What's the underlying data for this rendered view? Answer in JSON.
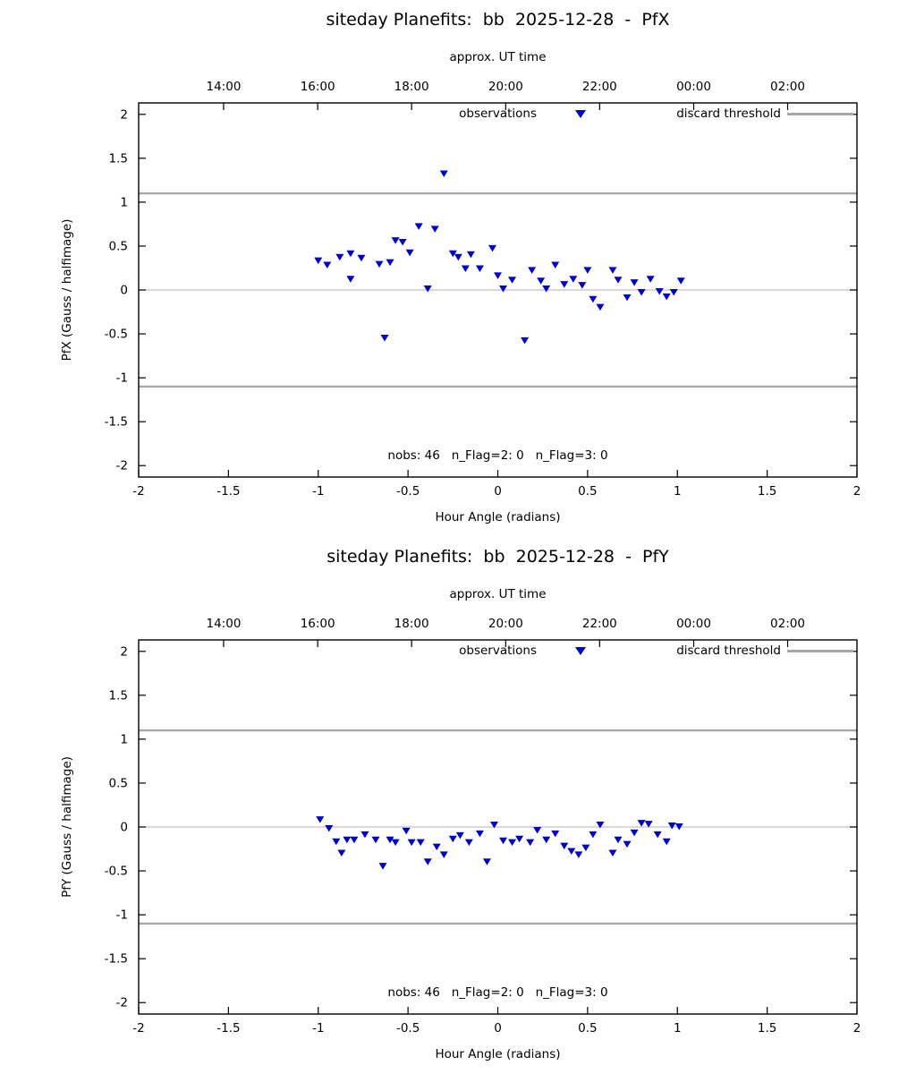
{
  "colors": {
    "marker": "#0000cc",
    "threshold": "#a8a8a8",
    "zero": "#c2c2c2",
    "box": "#000000"
  },
  "chart_data": [
    {
      "type": "scatter",
      "title": "siteday Planefits:  bb  2025-12-28  -  PfX",
      "top_axis_label": "approx. UT time",
      "xlabel": "Hour Angle (radians)",
      "ylabel": "PfX (Gauss / halfimage)",
      "annotation": "nobs: 46   n_Flag=2: 0   n_Flag=3: 0",
      "legend": {
        "observations_label": "observations",
        "threshold_label": "discard threshold"
      },
      "xlim": [
        -2,
        2
      ],
      "ylim": [
        -2.13,
        2.13
      ],
      "x_ticks": [
        -2,
        -1.5,
        -1,
        -0.5,
        0,
        0.5,
        1,
        1.5,
        2
      ],
      "x_tick_labels": [
        "-2",
        "-1.5",
        "-1",
        "-0.5",
        "0",
        "0.5",
        "1",
        "1.5",
        "2"
      ],
      "y_ticks": [
        2,
        1.5,
        1,
        0.5,
        0,
        -0.5,
        -1,
        -1.5,
        -2
      ],
      "y_tick_labels": [
        "2",
        "1.5",
        "1",
        "0.5",
        "0",
        "-0.5",
        "-1",
        "-1.5",
        "-2"
      ],
      "ut_ticks": [
        {
          "label": "14:00",
          "x": -1.527
        },
        {
          "label": "16:00",
          "x": -1.003
        },
        {
          "label": "18:00",
          "x": -0.48
        },
        {
          "label": "20:00",
          "x": 0.044
        },
        {
          "label": "22:00",
          "x": 0.567
        },
        {
          "label": "00:00",
          "x": 1.091
        },
        {
          "label": "02:00",
          "x": 1.614
        }
      ],
      "threshold_y": [
        1.1,
        -1.1
      ],
      "zero_line_y": 0,
      "points": [
        [
          -1.0,
          0.34
        ],
        [
          -0.95,
          0.29
        ],
        [
          -0.88,
          0.38
        ],
        [
          -0.82,
          0.42
        ],
        [
          -0.82,
          0.13
        ],
        [
          -0.76,
          0.37
        ],
        [
          -0.66,
          0.3
        ],
        [
          -0.63,
          -0.54
        ],
        [
          -0.6,
          0.32
        ],
        [
          -0.57,
          0.57
        ],
        [
          -0.53,
          0.55
        ],
        [
          -0.49,
          0.43
        ],
        [
          -0.44,
          0.73
        ],
        [
          -0.39,
          0.02
        ],
        [
          -0.35,
          0.7
        ],
        [
          -0.3,
          1.33
        ],
        [
          -0.25,
          0.42
        ],
        [
          -0.22,
          0.38
        ],
        [
          -0.18,
          0.25
        ],
        [
          -0.15,
          0.41
        ],
        [
          -0.1,
          0.25
        ],
        [
          -0.03,
          0.48
        ],
        [
          0.0,
          0.17
        ],
        [
          0.03,
          0.02
        ],
        [
          0.08,
          0.12
        ],
        [
          0.15,
          -0.57
        ],
        [
          0.19,
          0.23
        ],
        [
          0.24,
          0.11
        ],
        [
          0.27,
          0.02
        ],
        [
          0.32,
          0.29
        ],
        [
          0.37,
          0.07
        ],
        [
          0.42,
          0.13
        ],
        [
          0.47,
          0.06
        ],
        [
          0.5,
          0.23
        ],
        [
          0.53,
          -0.1
        ],
        [
          0.57,
          -0.19
        ],
        [
          0.64,
          0.23
        ],
        [
          0.67,
          0.12
        ],
        [
          0.72,
          -0.08
        ],
        [
          0.76,
          0.09
        ],
        [
          0.8,
          -0.02
        ],
        [
          0.85,
          0.13
        ],
        [
          0.9,
          -0.01
        ],
        [
          0.94,
          -0.07
        ],
        [
          0.98,
          -0.02
        ],
        [
          1.02,
          0.11
        ]
      ]
    },
    {
      "type": "scatter",
      "title": "siteday Planefits:  bb  2025-12-28  -  PfY",
      "top_axis_label": "approx. UT time",
      "xlabel": "Hour Angle (radians)",
      "ylabel": "PfY (Gauss / halfimage)",
      "annotation": "nobs: 46   n_Flag=2: 0   n_Flag=3: 0",
      "legend": {
        "observations_label": "observations",
        "threshold_label": "discard threshold"
      },
      "xlim": [
        -2,
        2
      ],
      "ylim": [
        -2.13,
        2.13
      ],
      "x_ticks": [
        -2,
        -1.5,
        -1,
        -0.5,
        0,
        0.5,
        1,
        1.5,
        2
      ],
      "x_tick_labels": [
        "-2",
        "-1.5",
        "-1",
        "-0.5",
        "0",
        "0.5",
        "1",
        "1.5",
        "2"
      ],
      "y_ticks": [
        2,
        1.5,
        1,
        0.5,
        0,
        -0.5,
        -1,
        -1.5,
        -2
      ],
      "y_tick_labels": [
        "2",
        "1.5",
        "1",
        "0.5",
        "0",
        "-0.5",
        "-1",
        "-1.5",
        "-2"
      ],
      "ut_ticks": [
        {
          "label": "14:00",
          "x": -1.527
        },
        {
          "label": "16:00",
          "x": -1.003
        },
        {
          "label": "18:00",
          "x": -0.48
        },
        {
          "label": "20:00",
          "x": 0.044
        },
        {
          "label": "22:00",
          "x": 0.567
        },
        {
          "label": "00:00",
          "x": 1.091
        },
        {
          "label": "02:00",
          "x": 1.614
        }
      ],
      "threshold_y": [
        1.1,
        -1.1
      ],
      "zero_line_y": 0,
      "points": [
        [
          -0.99,
          0.09
        ],
        [
          -0.94,
          -0.01
        ],
        [
          -0.9,
          -0.16
        ],
        [
          -0.87,
          -0.29
        ],
        [
          -0.84,
          -0.14
        ],
        [
          -0.8,
          -0.14
        ],
        [
          -0.74,
          -0.08
        ],
        [
          -0.68,
          -0.14
        ],
        [
          -0.64,
          -0.44
        ],
        [
          -0.6,
          -0.14
        ],
        [
          -0.57,
          -0.17
        ],
        [
          -0.51,
          -0.04
        ],
        [
          -0.48,
          -0.17
        ],
        [
          -0.43,
          -0.17
        ],
        [
          -0.39,
          -0.39
        ],
        [
          -0.34,
          -0.22
        ],
        [
          -0.3,
          -0.31
        ],
        [
          -0.25,
          -0.13
        ],
        [
          -0.21,
          -0.09
        ],
        [
          -0.16,
          -0.17
        ],
        [
          -0.1,
          -0.07
        ],
        [
          -0.06,
          -0.39
        ],
        [
          -0.02,
          0.03
        ],
        [
          0.03,
          -0.15
        ],
        [
          0.08,
          -0.17
        ],
        [
          0.12,
          -0.13
        ],
        [
          0.18,
          -0.17
        ],
        [
          0.22,
          -0.03
        ],
        [
          0.27,
          -0.14
        ],
        [
          0.32,
          -0.07
        ],
        [
          0.37,
          -0.21
        ],
        [
          0.41,
          -0.27
        ],
        [
          0.45,
          -0.31
        ],
        [
          0.49,
          -0.23
        ],
        [
          0.53,
          -0.08
        ],
        [
          0.57,
          0.03
        ],
        [
          0.64,
          -0.29
        ],
        [
          0.67,
          -0.14
        ],
        [
          0.72,
          -0.19
        ],
        [
          0.76,
          -0.06
        ],
        [
          0.8,
          0.05
        ],
        [
          0.84,
          0.04
        ],
        [
          0.89,
          -0.08
        ],
        [
          0.94,
          -0.16
        ],
        [
          0.97,
          0.02
        ],
        [
          1.01,
          0.01
        ]
      ]
    }
  ]
}
